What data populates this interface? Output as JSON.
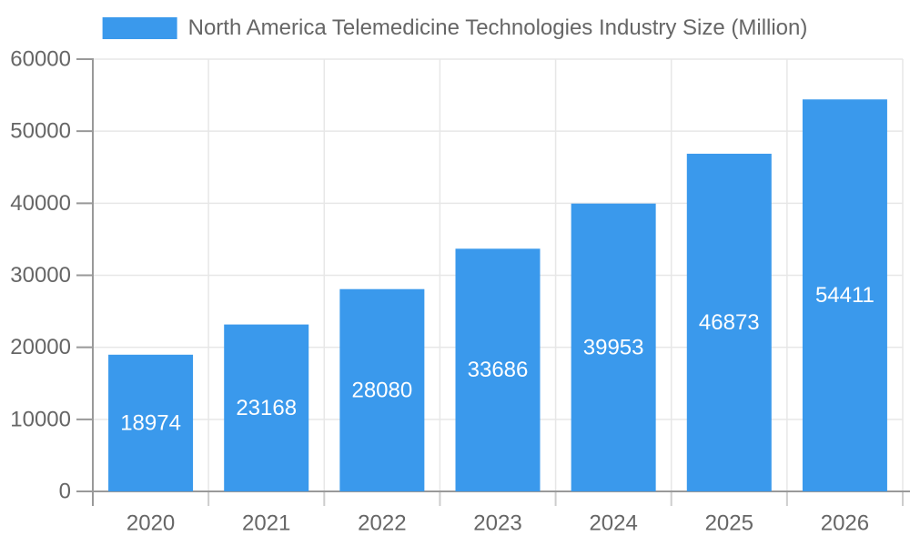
{
  "chart_data": {
    "type": "bar",
    "title": "North America Telemedicine Technologies Industry Size (Million)",
    "legend_position": "top",
    "categories": [
      "2020",
      "2021",
      "2022",
      "2023",
      "2024",
      "2025",
      "2026"
    ],
    "series": [
      {
        "name": "North America Telemedicine Technologies Industry Size (Million)",
        "values": [
          18974,
          23168,
          28080,
          33686,
          39953,
          46873,
          54411
        ]
      }
    ],
    "value_labels": "inside-center",
    "xlabel": "",
    "ylabel": "",
    "ylim": [
      0,
      60000
    ],
    "yticks": [
      0,
      10000,
      20000,
      30000,
      40000,
      50000,
      60000
    ],
    "grid": true,
    "colors": {
      "bar": "#3a99ec",
      "grid": "#e7e7e7",
      "axis": "#999999",
      "tick_text": "#666666",
      "value_text": "#ffffff",
      "legend_text": "#666666"
    }
  }
}
